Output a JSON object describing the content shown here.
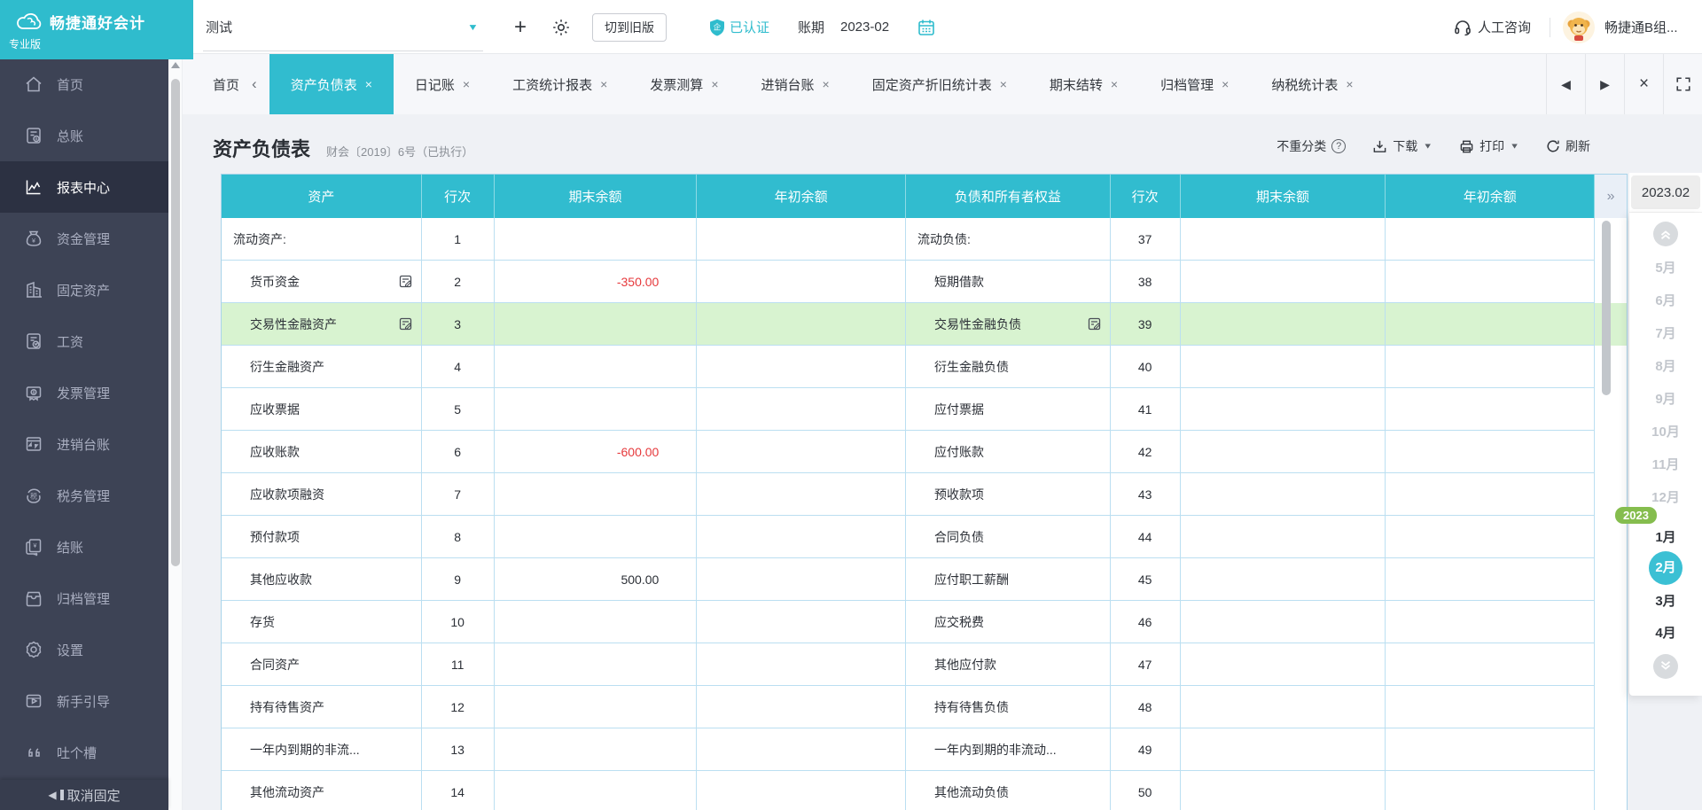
{
  "colors": {
    "accent": "#31bccf",
    "negative": "#e6393c",
    "highlight_row": "#d8f3d0",
    "year_badge_green": "#85bd4e",
    "sidebar_bg": "#3d4355"
  },
  "logo": {
    "name": "畅捷通好会计",
    "edition": "专业版",
    "icon": "cloud-logo-icon"
  },
  "topbar": {
    "account": "测试",
    "add_label": "+",
    "switch_old_label": "切到旧版",
    "certified_label": "已认证",
    "period_label": "账期",
    "period_value": "2023-02",
    "support_label": "人工咨询",
    "username": "畅捷通B组..."
  },
  "tabbar": {
    "home_label": "首页",
    "tabs": [
      {
        "label": "资产负债表",
        "active": true
      },
      {
        "label": "日记账",
        "active": false
      },
      {
        "label": "工资统计报表",
        "active": false
      },
      {
        "label": "发票测算",
        "active": false
      },
      {
        "label": "进销台账",
        "active": false
      },
      {
        "label": "固定资产折旧统计表",
        "active": false
      },
      {
        "label": "期末结转",
        "active": false
      },
      {
        "label": "归档管理",
        "active": false
      },
      {
        "label": "纳税统计表",
        "active": false
      }
    ]
  },
  "sidebar": {
    "items": [
      {
        "label": "首页",
        "icon": "home-icon",
        "active": false
      },
      {
        "label": "总账",
        "icon": "ledger-icon",
        "active": false
      },
      {
        "label": "报表中心",
        "icon": "report-center-icon",
        "active": true
      },
      {
        "label": "资金管理",
        "icon": "funds-icon",
        "active": false
      },
      {
        "label": "固定资产",
        "icon": "fixed-assets-icon",
        "active": false
      },
      {
        "label": "工资",
        "icon": "payroll-icon",
        "active": false
      },
      {
        "label": "发票管理",
        "icon": "invoice-icon",
        "active": false
      },
      {
        "label": "进销台账",
        "icon": "purchase-sale-icon",
        "active": false
      },
      {
        "label": "税务管理",
        "icon": "tax-icon",
        "active": false
      },
      {
        "label": "结账",
        "icon": "closing-icon",
        "active": false
      },
      {
        "label": "归档管理",
        "icon": "archive-icon",
        "active": false
      },
      {
        "label": "设置",
        "icon": "settings-icon",
        "active": false
      },
      {
        "label": "新手引导",
        "icon": "guide-icon",
        "active": false
      },
      {
        "label": "吐个槽",
        "icon": "feedback-icon",
        "active": false
      }
    ],
    "unpin_label": "取消固定"
  },
  "report": {
    "title": "资产负债表",
    "subtitle": "财会〔2019〕6号（已执行）",
    "toolbar": {
      "no_reclassify": "不重分类",
      "download": "下载",
      "print": "打印",
      "refresh": "刷新"
    }
  },
  "balance_table": {
    "headers": [
      "资产",
      "行次",
      "期末余额",
      "年初余额",
      "负债和所有者权益",
      "行次",
      "期末余额",
      "年初余额"
    ],
    "rows": [
      {
        "asset": "流动资产:",
        "section": true,
        "icon": false,
        "line": "1",
        "end": "",
        "begin": "",
        "liability": "流动负债:",
        "l_section": true,
        "l_icon": false,
        "l_line": "37",
        "l_end": "",
        "l_begin": "",
        "highlight": false
      },
      {
        "asset": "货币资金",
        "section": false,
        "icon": true,
        "line": "2",
        "end": "-350.00",
        "begin": "",
        "liability": "短期借款",
        "l_section": false,
        "l_icon": false,
        "l_line": "38",
        "l_end": "",
        "l_begin": "",
        "highlight": false
      },
      {
        "asset": "交易性金融资产",
        "section": false,
        "icon": true,
        "line": "3",
        "end": "",
        "begin": "",
        "liability": "交易性金融负债",
        "l_section": false,
        "l_icon": true,
        "l_line": "39",
        "l_end": "",
        "l_begin": "",
        "highlight": true
      },
      {
        "asset": "衍生金融资产",
        "section": false,
        "icon": false,
        "line": "4",
        "end": "",
        "begin": "",
        "liability": "衍生金融负债",
        "l_section": false,
        "l_icon": false,
        "l_line": "40",
        "l_end": "",
        "l_begin": "",
        "highlight": false
      },
      {
        "asset": "应收票据",
        "section": false,
        "icon": false,
        "line": "5",
        "end": "",
        "begin": "",
        "liability": "应付票据",
        "l_section": false,
        "l_icon": false,
        "l_line": "41",
        "l_end": "",
        "l_begin": "",
        "highlight": false
      },
      {
        "asset": "应收账款",
        "section": false,
        "icon": false,
        "line": "6",
        "end": "-600.00",
        "begin": "",
        "liability": "应付账款",
        "l_section": false,
        "l_icon": false,
        "l_line": "42",
        "l_end": "",
        "l_begin": "",
        "highlight": false
      },
      {
        "asset": "应收款项融资",
        "section": false,
        "icon": false,
        "line": "7",
        "end": "",
        "begin": "",
        "liability": "预收款项",
        "l_section": false,
        "l_icon": false,
        "l_line": "43",
        "l_end": "",
        "l_begin": "",
        "highlight": false
      },
      {
        "asset": "预付款项",
        "section": false,
        "icon": false,
        "line": "8",
        "end": "",
        "begin": "",
        "liability": "合同负债",
        "l_section": false,
        "l_icon": false,
        "l_line": "44",
        "l_end": "",
        "l_begin": "",
        "highlight": false
      },
      {
        "asset": "其他应收款",
        "section": false,
        "icon": false,
        "line": "9",
        "end": "500.00",
        "begin": "",
        "liability": "应付职工薪酬",
        "l_section": false,
        "l_icon": false,
        "l_line": "45",
        "l_end": "",
        "l_begin": "",
        "highlight": false
      },
      {
        "asset": "存货",
        "section": false,
        "icon": false,
        "line": "10",
        "end": "",
        "begin": "",
        "liability": "应交税费",
        "l_section": false,
        "l_icon": false,
        "l_line": "46",
        "l_end": "",
        "l_begin": "",
        "highlight": false
      },
      {
        "asset": "合同资产",
        "section": false,
        "icon": false,
        "line": "11",
        "end": "",
        "begin": "",
        "liability": "其他应付款",
        "l_section": false,
        "l_icon": false,
        "l_line": "47",
        "l_end": "",
        "l_begin": "",
        "highlight": false
      },
      {
        "asset": "持有待售资产",
        "section": false,
        "icon": false,
        "line": "12",
        "end": "",
        "begin": "",
        "liability": "持有待售负债",
        "l_section": false,
        "l_icon": false,
        "l_line": "48",
        "l_end": "",
        "l_begin": "",
        "highlight": false
      },
      {
        "asset": "一年内到期的非流...",
        "section": false,
        "icon": false,
        "line": "13",
        "end": "",
        "begin": "",
        "liability": "一年内到期的非流动...",
        "l_section": false,
        "l_icon": false,
        "l_line": "49",
        "l_end": "",
        "l_begin": "",
        "highlight": false
      },
      {
        "asset": "其他流动资产",
        "section": false,
        "icon": false,
        "line": "14",
        "end": "",
        "begin": "",
        "liability": "其他流动负债",
        "l_section": false,
        "l_icon": false,
        "l_line": "50",
        "l_end": "",
        "l_begin": "",
        "highlight": false
      }
    ]
  },
  "month_panel": {
    "current": "2023.02",
    "year_badge": "2023",
    "months": [
      {
        "label": "5月",
        "state": "dim"
      },
      {
        "label": "6月",
        "state": "dim"
      },
      {
        "label": "7月",
        "state": "dim"
      },
      {
        "label": "8月",
        "state": "dim"
      },
      {
        "label": "9月",
        "state": "dim"
      },
      {
        "label": "10月",
        "state": "dim"
      },
      {
        "label": "11月",
        "state": "dim"
      },
      {
        "label": "12月",
        "state": "dim"
      },
      {
        "label": "1月",
        "state": "normal"
      },
      {
        "label": "2月",
        "state": "selected"
      },
      {
        "label": "3月",
        "state": "normal"
      },
      {
        "label": "4月",
        "state": "normal"
      }
    ]
  }
}
